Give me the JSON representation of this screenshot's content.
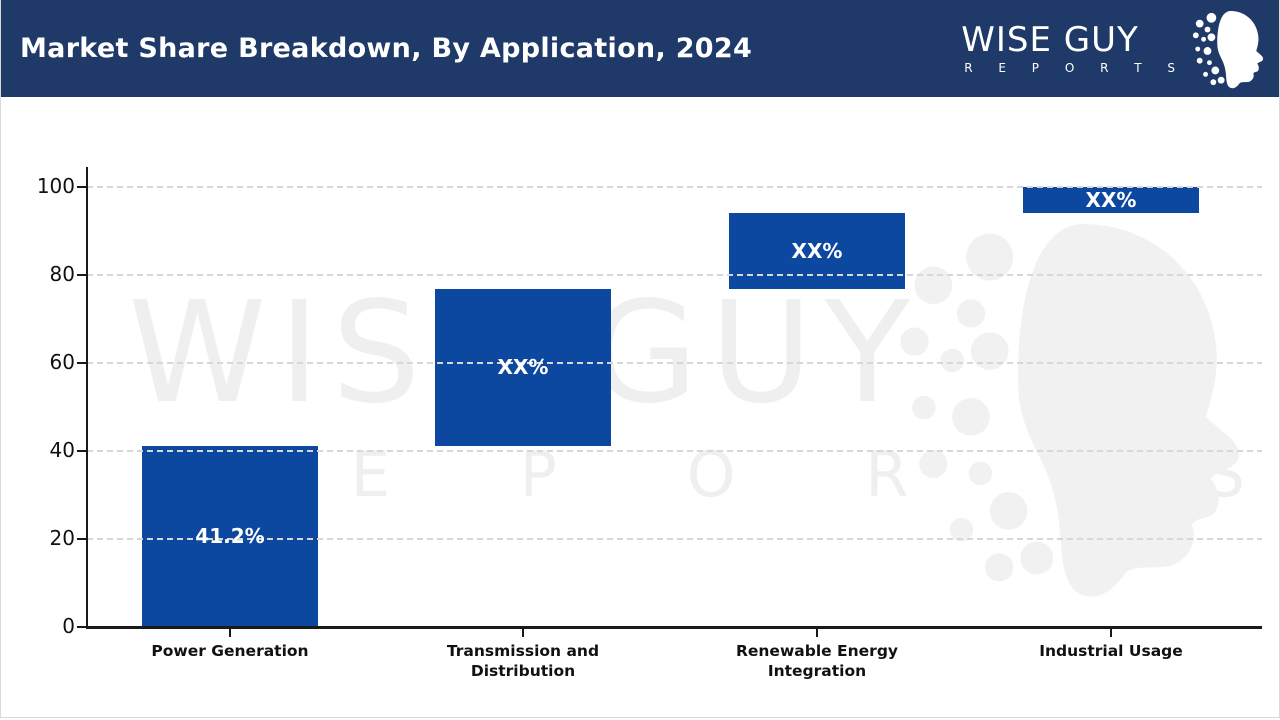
{
  "header": {
    "title": "Market Share Breakdown, By Application, 2024",
    "bg_color": "#1f3a68",
    "logo": {
      "line1": "WISE GUY",
      "line2": "R E P O R T S",
      "head_icon": "head-profile-dots"
    }
  },
  "watermark": {
    "line1": "WISE GUY",
    "line2": "R E P O R T S",
    "head_icon": "head-profile-dots"
  },
  "chart_data": {
    "type": "bar",
    "variant": "waterfall",
    "title": "Market Share Breakdown, By Application, 2024",
    "xlabel": "",
    "ylabel": "",
    "ylim": [
      0,
      100
    ],
    "yticks": [
      0,
      20,
      40,
      60,
      80,
      100
    ],
    "grid": "horizontal-dashed",
    "legend": "none",
    "bar_color": "#0c47a0",
    "value_label_color": "#ffffff",
    "categories": [
      "Power Generation",
      "Transmission and Distribution",
      "Renewable Energy Integration",
      "Industrial Usage"
    ],
    "segments": [
      {
        "category": "Power Generation",
        "start": 0,
        "end": 41.2,
        "label": "41.2%"
      },
      {
        "category": "Transmission and Distribution",
        "start": 41.2,
        "end": 76.8,
        "label": "XX%"
      },
      {
        "category": "Renewable Energy Integration",
        "start": 76.8,
        "end": 94.1,
        "label": "XX%"
      },
      {
        "category": "Industrial Usage",
        "start": 94.1,
        "end": 100,
        "label": "XX%"
      }
    ]
  }
}
